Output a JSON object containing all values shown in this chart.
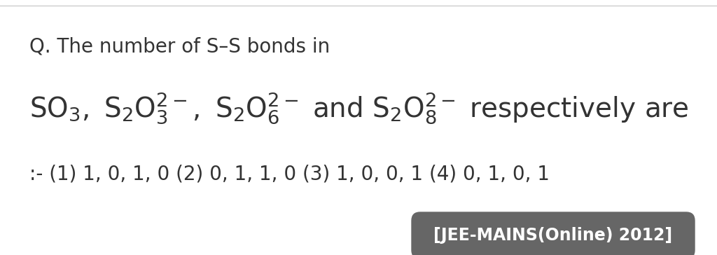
{
  "background_color": "#ffffff",
  "top_border_color": "#cccccc",
  "line1_text": "Q. The number of S–S bonds in",
  "line3_options": ":- (1) 1, 0, 1, 0 (2) 0, 1, 1, 0 (3) 1, 0, 0, 1 (4) 0, 1, 0, 1",
  "badge_text": "[JEE-MAINS(Online) 2012]",
  "badge_bg": "#666666",
  "badge_text_color": "#ffffff",
  "text_color": "#333333",
  "font_size_line1": 20,
  "font_size_line2": 28,
  "font_size_line3": 20,
  "font_size_badge": 17,
  "fig_width": 10.24,
  "fig_height": 3.64
}
